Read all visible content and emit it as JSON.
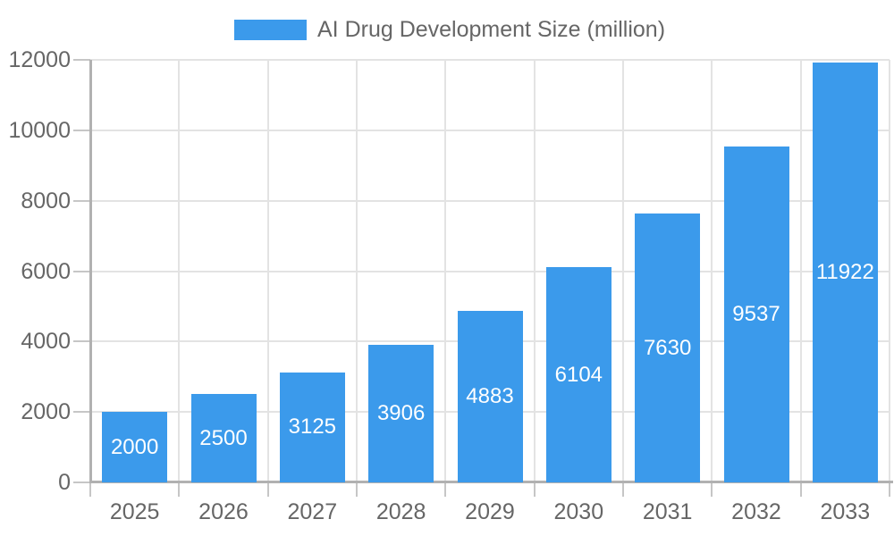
{
  "chart_data": {
    "type": "bar",
    "legend": "AI Drug Development Size (million)",
    "categories": [
      "2025",
      "2026",
      "2027",
      "2028",
      "2029",
      "2030",
      "2031",
      "2032",
      "2033"
    ],
    "values": [
      2000,
      2500,
      3125,
      3906,
      4883,
      6104,
      7630,
      9537,
      11922
    ],
    "value_labels_shown": [
      "2000",
      "2500",
      "3125",
      "3906",
      "4883",
      "6104",
      "7630",
      "9537",
      "11922"
    ],
    "ytick_labels": [
      "0",
      "2000",
      "4000",
      "6000",
      "8000",
      "10000",
      "12000"
    ],
    "ylim": [
      0,
      12000
    ],
    "ytick_step": 2000,
    "grid": true,
    "legend_position": "top-center",
    "value_label_position": "inside-center",
    "colors": {
      "bar": "#3B9AEB",
      "grid": "#E3E3E3",
      "axis": "#B1B1B1",
      "tick": "#C6C6C6",
      "text": "#666666",
      "value_label": "#FFFFFF",
      "background": "#FFFFFF"
    }
  }
}
